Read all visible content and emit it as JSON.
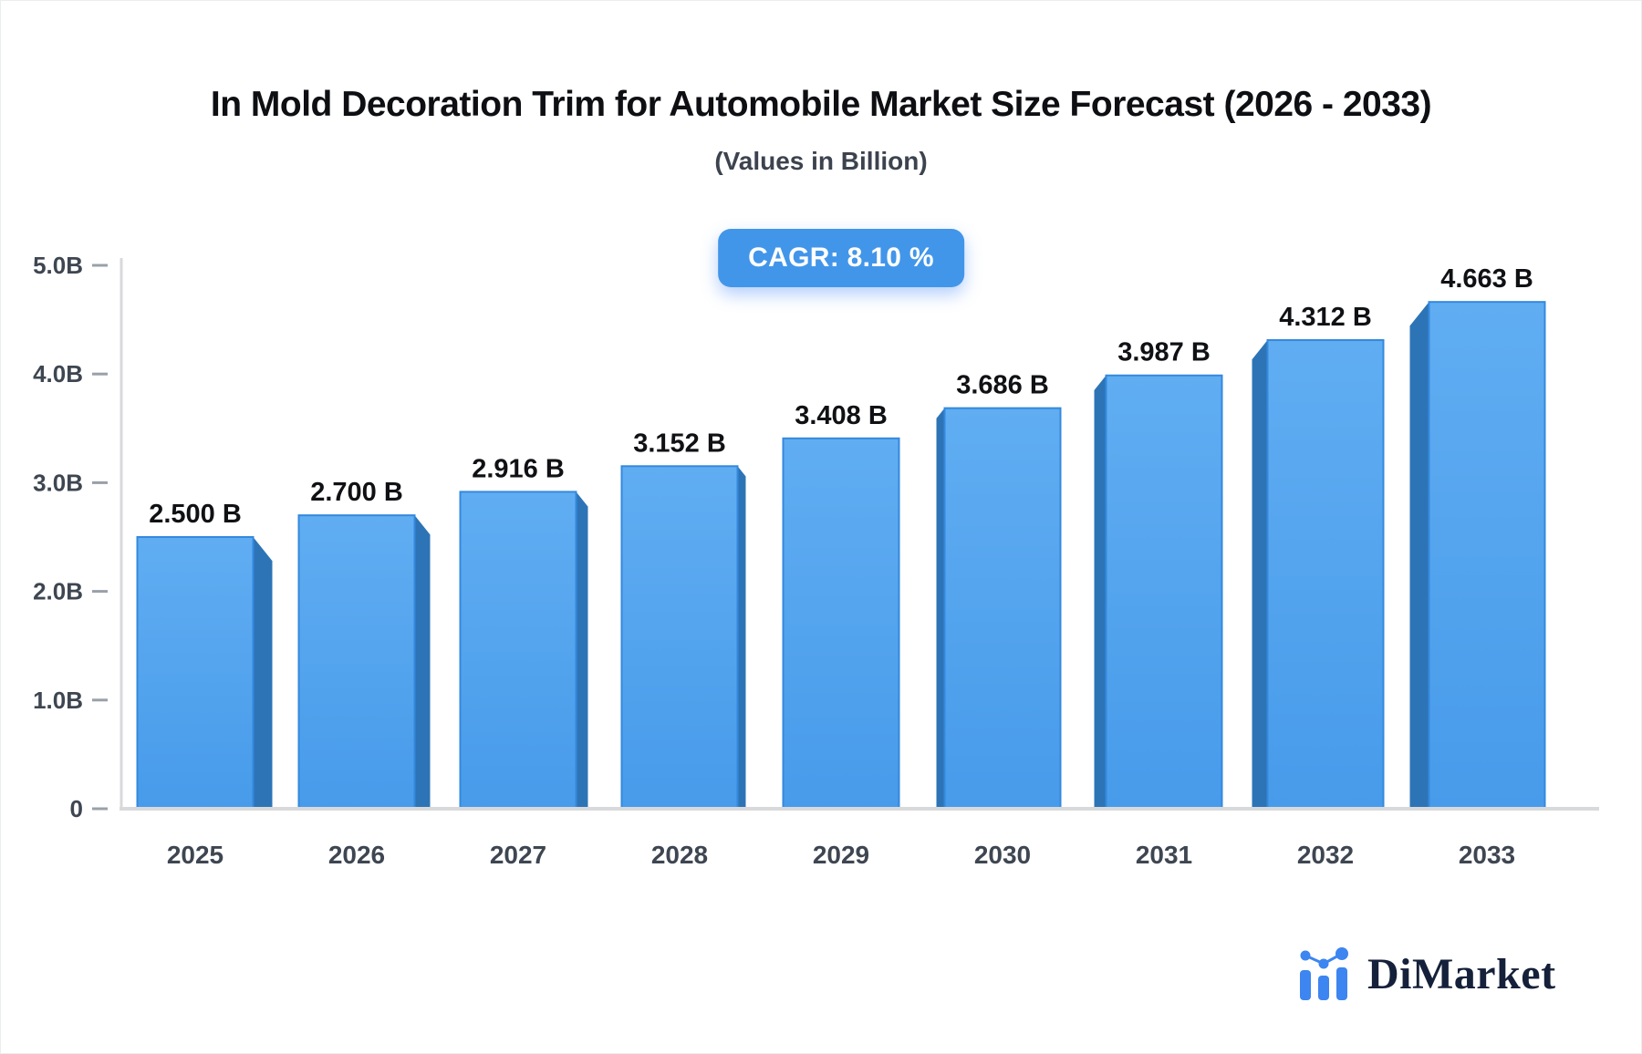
{
  "chart_data": {
    "type": "bar",
    "title": "In Mold Decoration Trim for Automobile Market Size Forecast (2026 - 2033)",
    "subtitle": "(Values in Billion)",
    "cagr_label": "CAGR: 8.10 %",
    "cagr_percent": 8.1,
    "categories": [
      "2025",
      "2026",
      "2027",
      "2028",
      "2029",
      "2030",
      "2031",
      "2032",
      "2033"
    ],
    "values": [
      2.5,
      2.7,
      2.916,
      3.152,
      3.408,
      3.686,
      3.987,
      4.312,
      4.663
    ],
    "value_labels": [
      "2.500 B",
      "2.700 B",
      "2.916 B",
      "3.152 B",
      "3.408 B",
      "3.686 B",
      "3.987 B",
      "4.312 B",
      "4.663 B"
    ],
    "xlabel": "",
    "ylabel": "",
    "ylim": [
      0,
      5
    ],
    "yticks": [
      {
        "value": 5,
        "label": "5.0B"
      },
      {
        "value": 4,
        "label": "4.0B"
      },
      {
        "value": 3,
        "label": "3.0B"
      },
      {
        "value": 2,
        "label": "2.0B"
      },
      {
        "value": 1,
        "label": "1.0B"
      },
      {
        "value": 0,
        "label": "0"
      }
    ],
    "grid": false,
    "legend": "none",
    "colors": {
      "bar_face_top": "#60adf2",
      "bar_face_bottom": "#479bea",
      "bar_face_stroke": "#3489dd",
      "bar_side": "#2d74b6",
      "badge": "#4296e9",
      "axis_line": "#d8d9db",
      "tick_dash": "#99a0a9",
      "tick_label": "#3e4651",
      "value_label": "#101114"
    }
  },
  "logo": {
    "text": "DiMarket",
    "icon": "mini-bar-chart-icon",
    "icon_color": "#3d85f0",
    "text_color": "#15203a"
  }
}
